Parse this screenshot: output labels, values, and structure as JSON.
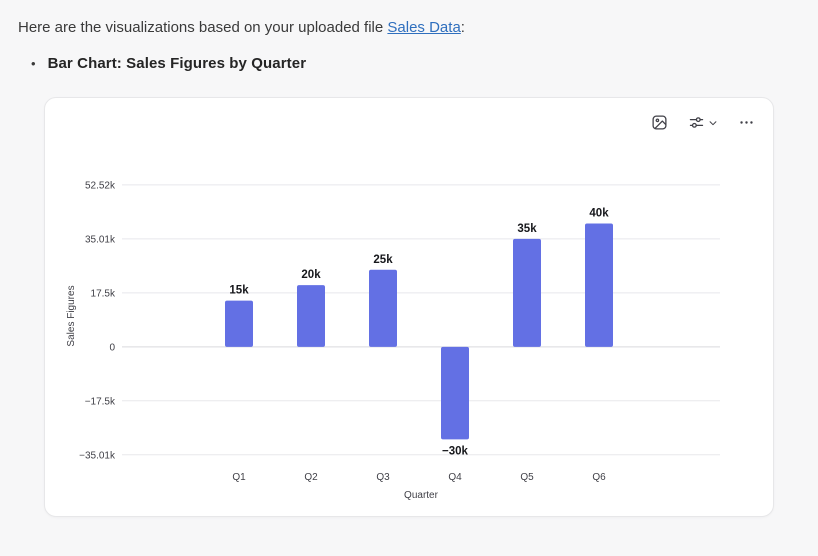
{
  "page": {
    "intro_prefix": "Here are the visualizations based on your uploaded file ",
    "intro_link": "Sales Data",
    "intro_suffix": ":",
    "bullet_marker": "•",
    "bullet_item": "Bar Chart: Sales Figures by Quarter",
    "colors": {
      "link": "#2f6fbe",
      "background": "#f7f7f8",
      "card": "#ffffff"
    }
  },
  "card": {
    "toolbar": {
      "icons": [
        "image-icon",
        "sliders-icon",
        "chevron-down-icon",
        "ellipsis-icon"
      ]
    }
  },
  "chart_data": {
    "type": "bar",
    "title": "Sales Figures by Quarter",
    "categories": [
      "Q1",
      "Q2",
      "Q3",
      "Q4",
      "Q5",
      "Q6"
    ],
    "values": [
      15000,
      20000,
      25000,
      -30000,
      35000,
      40000
    ],
    "bar_labels": [
      "15k",
      "20k",
      "25k",
      "−30k",
      "35k",
      "40k"
    ],
    "xlabel": "Quarter",
    "ylabel": "Sales Figures",
    "yticks": [
      {
        "value": 52515,
        "label": "52.52k"
      },
      {
        "value": 35010,
        "label": "35.01k"
      },
      {
        "value": 17505,
        "label": "17.5k"
      },
      {
        "value": 0,
        "label": "0"
      },
      {
        "value": -17505,
        "label": "−17.5k"
      },
      {
        "value": -35010,
        "label": "−35.01k"
      }
    ],
    "ylim": [
      -38000,
      58000
    ],
    "grid": true,
    "legend": false,
    "bar_color": "#6370e4"
  }
}
